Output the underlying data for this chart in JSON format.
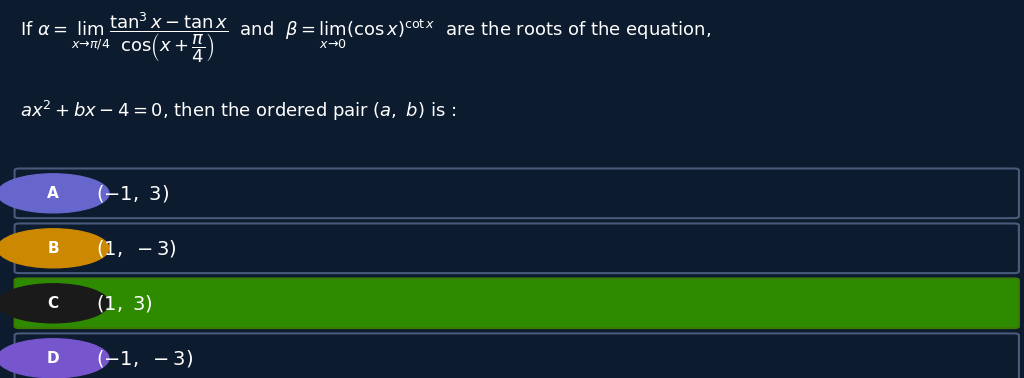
{
  "background_color": "#0d1b2e",
  "question_text_line1": "If $\\alpha = \\lim_{x \\to \\pi/4} \\dfrac{\\tan^3 x - \\tan x}{\\cos\\left(x + \\dfrac{\\pi}{4}\\right)}$ and $\\beta = \\lim_{x \\to 0} (\\cos x)^{\\cot x}$ are the roots of the equation,",
  "question_text_line2": "$ax^2 + bx - 4 = 0$, then the ordered pair $(a,\\ b)$ is :",
  "options": [
    {
      "label": "A",
      "text": "$(-1,\\ 3)$",
      "correct": false
    },
    {
      "label": "B",
      "text": "$(1,\\ -3)$",
      "correct": false
    },
    {
      "label": "C",
      "text": "$(1,\\ 3)$",
      "correct": true
    },
    {
      "label": "D",
      "text": "$(-1,\\ -3)$",
      "correct": false
    }
  ],
  "option_bg_normal": "#0d1b2e",
  "option_bg_correct": "#2e8b00",
  "option_border_color": "#4a5a7a",
  "option_border_correct": "#2e8b00",
  "label_color_A": "#6060cc",
  "label_color_B": "#cc8800",
  "label_color_C": "#222222",
  "label_color_D": "#6040cc",
  "text_color": "#ffffff",
  "font_size_question": 13,
  "font_size_option": 14
}
